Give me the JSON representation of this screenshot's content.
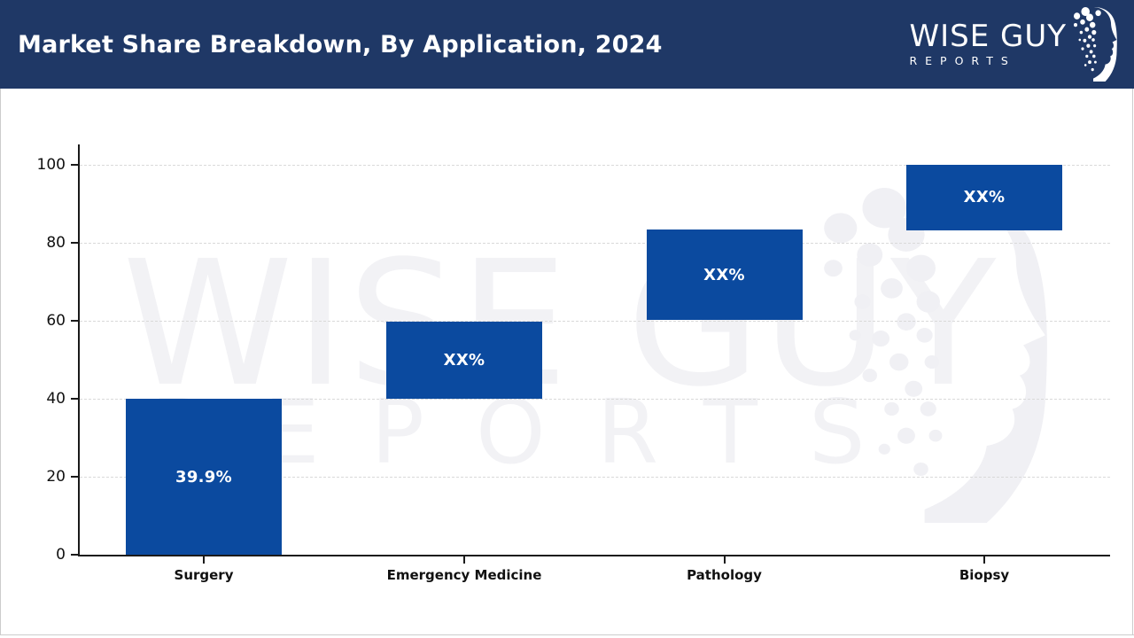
{
  "header": {
    "title": "Market Share Breakdown, By Application, 2024",
    "logo": {
      "line1": "WISE GUY",
      "line2": "REPORTS"
    }
  },
  "watermark": {
    "line1": "WISE GUY",
    "line2": "REPORTS"
  },
  "chart_data": {
    "type": "bar",
    "subtype": "waterfall",
    "title": "Market Share Breakdown, By Application, 2024",
    "categories": [
      "Surgery",
      "Emergency Medicine",
      "Pathology",
      "Biopsy"
    ],
    "series": [
      {
        "name": "Market Share",
        "segments": [
          {
            "category": "Surgery",
            "start": 0,
            "end": 39.9,
            "label": "39.9%"
          },
          {
            "category": "Emergency Medicine",
            "start": 40.0,
            "end": 59.8,
            "label": "XX%"
          },
          {
            "category": "Pathology",
            "start": 60.2,
            "end": 83.4,
            "label": "XX%"
          },
          {
            "category": "Biopsy",
            "start": 83.2,
            "end": 100,
            "label": "XX%"
          }
        ]
      }
    ],
    "xlabel": "",
    "ylabel": "",
    "ylim": [
      0,
      100
    ],
    "yticks": [
      0,
      20,
      40,
      60,
      80,
      100
    ],
    "grid": "horizontal-dashed",
    "legend_position": "none",
    "colors": {
      "bar": "#0b4a9f",
      "bar_label": "#ffffff",
      "header_bg": "#1f3866",
      "axis": "#1a1a1a",
      "gridline": "#d9d9d9",
      "watermark": "#f2f2f5"
    }
  }
}
